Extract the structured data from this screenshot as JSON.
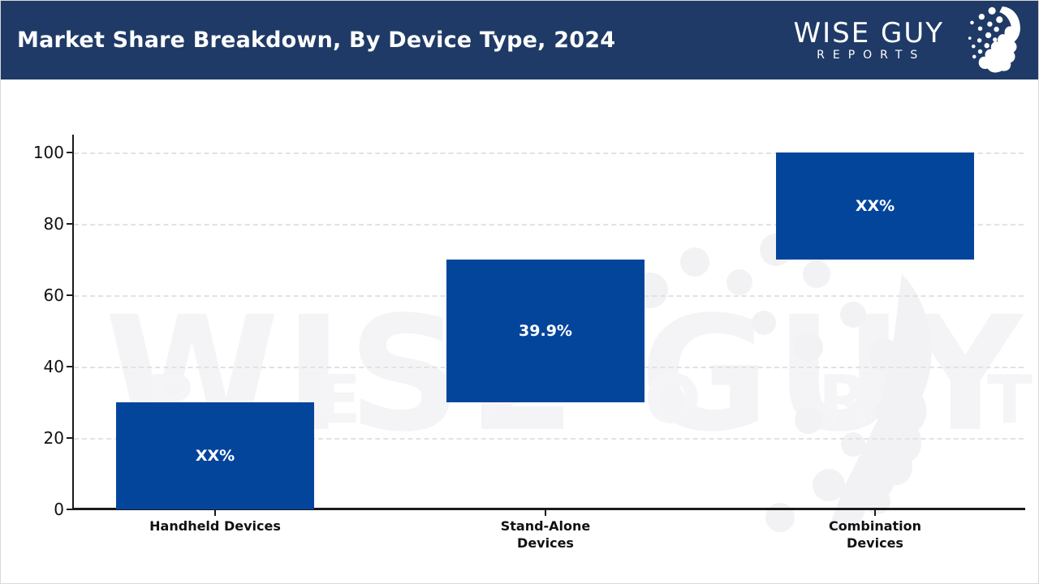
{
  "header": {
    "title": "Market Share Breakdown, By Device Type, 2024",
    "logo": {
      "line1": "WISE GUY",
      "line2": "REPORTS"
    }
  },
  "watermark": {
    "line1": "WISE GUY",
    "line2": "R E P O R T S"
  },
  "colors": {
    "header_bg": "#1f3a66",
    "bar": "#04459c",
    "axis": "#1a1a1a",
    "gridline": "#e2e2e4",
    "bar_label_text": "#ffffff",
    "tick_text": "#111111"
  },
  "chart_data": {
    "type": "waterfall",
    "title": "Market Share Breakdown, By Device Type, 2024",
    "categories": [
      [
        "Handheld Devices"
      ],
      [
        "Stand-Alone",
        "Devices"
      ],
      [
        "Combination",
        "Devices"
      ]
    ],
    "bars": [
      {
        "category": "Handheld Devices",
        "start": 0,
        "end": 30,
        "label": "XX%"
      },
      {
        "category": "Stand-Alone Devices",
        "start": 30,
        "end": 70,
        "label": "39.9%"
      },
      {
        "category": "Combination Devices",
        "start": 70,
        "end": 100,
        "label": "XX%"
      }
    ],
    "ylim": [
      0,
      100
    ],
    "yticks": [
      0,
      20,
      40,
      60,
      80,
      100
    ],
    "grid": "horizontal-dashed",
    "legend": "none"
  }
}
